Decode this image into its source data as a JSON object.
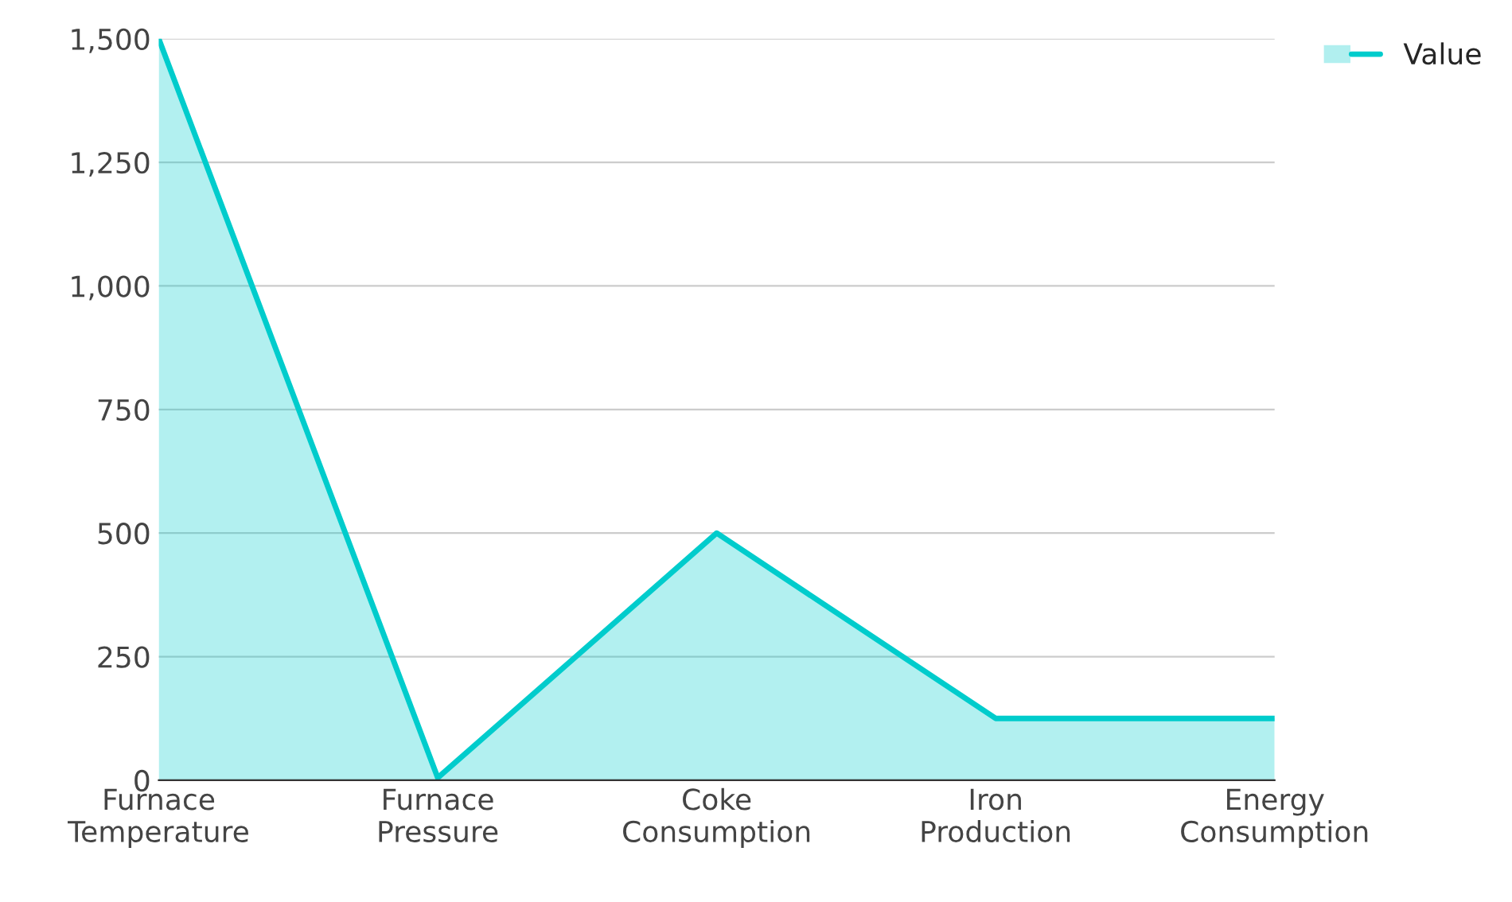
{
  "chart_data": {
    "type": "area",
    "categories": [
      "Furnace\nTemperature",
      "Furnace\nPressure",
      "Coke\nConsumption",
      "Iron\nProduction",
      "Energy\nConsumption"
    ],
    "series": [
      {
        "name": "Value",
        "color": "#00cccc",
        "values": [
          1500,
          5,
          500,
          125,
          125
        ]
      }
    ],
    "ylim": [
      0,
      1500
    ],
    "yticks": [
      {
        "value": 0,
        "label": "0"
      },
      {
        "value": 250,
        "label": "250"
      },
      {
        "value": 500,
        "label": "500"
      },
      {
        "value": 750,
        "label": "750"
      },
      {
        "value": 1000,
        "label": "1,000"
      },
      {
        "value": 1250,
        "label": "1,250"
      },
      {
        "value": 1500,
        "label": "1,500"
      }
    ],
    "grid": "y",
    "legend": "top right"
  }
}
